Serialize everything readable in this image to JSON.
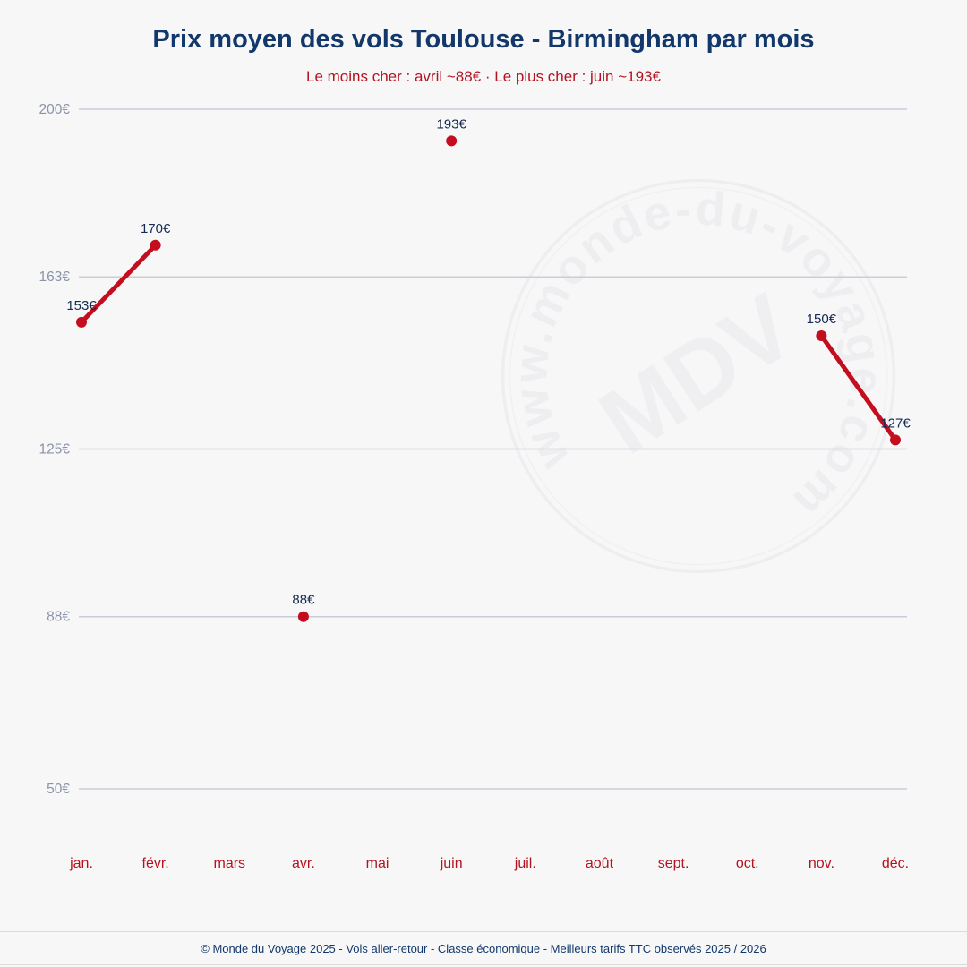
{
  "title": "Prix moyen des vols Toulouse - Birmingham par mois",
  "subtitle": "Le moins cher : avril ~88€ · Le plus cher : juin ~193€",
  "watermark": {
    "circle_text": "www.monde-du-voyage.com",
    "center_text": "MDV"
  },
  "footer": "© Monde du Voyage 2025 - Vols aller-retour - Classe économique - Meilleurs tarifs TTC observés 2025 / 2026",
  "chart_data": {
    "type": "line",
    "title": "Prix moyen des vols Toulouse - Birmingham par mois",
    "categories": [
      "jan.",
      "févr.",
      "mars",
      "avr.",
      "mai",
      "juin",
      "juil.",
      "août",
      "sept.",
      "oct.",
      "nov.",
      "déc."
    ],
    "values": [
      153,
      170,
      null,
      88,
      null,
      193,
      null,
      null,
      null,
      null,
      150,
      127
    ],
    "point_labels": [
      "153€",
      "170€",
      null,
      "88€",
      null,
      "193€",
      null,
      null,
      null,
      null,
      "150€",
      "127€"
    ],
    "unit": "€",
    "y_ticks": [
      200,
      163,
      125,
      88,
      50
    ],
    "y_tick_labels": [
      "200€",
      "163€",
      "125€",
      "88€",
      "50€"
    ],
    "ylim": [
      50,
      200
    ],
    "grid": "horizontal",
    "legend": false,
    "colors": {
      "line": "#c40d1e",
      "point": "#c40d1e",
      "grid": "#c9cdd7",
      "axis_label": "#8a93a8",
      "x_label": "#b5121f",
      "value_label": "#142a50"
    }
  }
}
